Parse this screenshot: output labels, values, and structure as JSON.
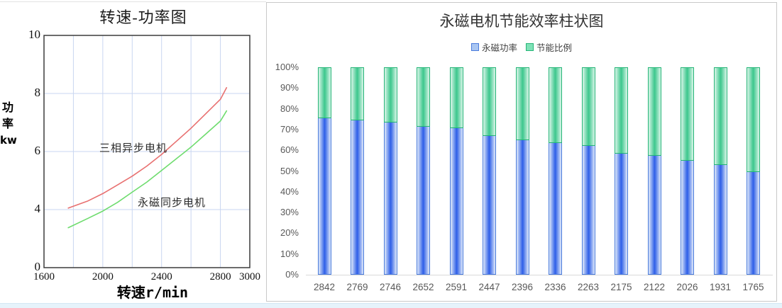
{
  "page": {
    "bottom_strip_color": "#e6f3fb",
    "card_border_color": "#c9c9c9"
  },
  "chart_data": [
    {
      "type": "line",
      "title": "转速-功率图",
      "xlabel": "转速r/min",
      "ylabel": "功率kw",
      "ylabel_lines": [
        "功",
        "率",
        "kw"
      ],
      "xlim": [
        1600,
        3000
      ],
      "xticks": [
        "1600",
        "2000",
        "2400",
        "2800",
        "3000"
      ],
      "xtick_values": [
        1600,
        2000,
        2400,
        2800,
        3000
      ],
      "yticks": [
        "0",
        "4",
        "6",
        "8",
        "10"
      ],
      "ytick_values": [
        0,
        4,
        6,
        8,
        10
      ],
      "axis_note": "y axis non-uniform: labeled ticks 0,4,6,8,10 are equally spaced",
      "grid": true,
      "gridline_color": "#c9d6f0",
      "grid_x_values": [
        1800,
        2000,
        2200,
        2400,
        2600,
        2800
      ],
      "grid_y_values": [
        4,
        6,
        8
      ],
      "legend_position": "inline-labels",
      "series": [
        {
          "name": "三相异步电机",
          "color": "#e87070",
          "x": [
            1765,
            1900,
            2000,
            2100,
            2200,
            2300,
            2400,
            2500,
            2600,
            2700,
            2800,
            2842
          ],
          "y": [
            4.05,
            4.3,
            4.55,
            4.85,
            5.15,
            5.5,
            5.9,
            6.35,
            6.8,
            7.3,
            7.8,
            8.2
          ]
        },
        {
          "name": "永磁同步电机",
          "color": "#6edc6e",
          "x": [
            1765,
            1900,
            2000,
            2100,
            2200,
            2300,
            2400,
            2500,
            2600,
            2700,
            2800,
            2842
          ],
          "y": [
            2.75,
            3.4,
            3.9,
            4.25,
            4.6,
            4.95,
            5.35,
            5.75,
            6.15,
            6.6,
            7.05,
            7.4
          ]
        }
      ]
    },
    {
      "type": "bar",
      "subtype": "stacked",
      "title": "永磁电机节能效率柱状图",
      "categories": [
        "2842",
        "2769",
        "2746",
        "2652",
        "2591",
        "2447",
        "2396",
        "2336",
        "2263",
        "2175",
        "2122",
        "2026",
        "1931",
        "1765"
      ],
      "series": [
        {
          "name": "永磁功率",
          "color": "#2d5ee8",
          "edge_color": "#e0eafa",
          "border_color": "#4a7bdc",
          "legend_fill": "#a9c6f2",
          "values": [
            75.5,
            74.5,
            73.5,
            71.5,
            70.5,
            67,
            65,
            63.5,
            62,
            58.5,
            57.5,
            55,
            53,
            49.5
          ]
        },
        {
          "name": "节能比例",
          "color": "#3bc78c",
          "edge_color": "#d9f5e8",
          "border_color": "#25b577",
          "legend_fill": "#7fe2b7",
          "values": [
            24.5,
            25.5,
            26.5,
            28.5,
            29.5,
            33,
            35,
            36.5,
            38,
            41.5,
            42.5,
            45,
            47,
            50.5
          ]
        }
      ],
      "ylim": [
        0,
        100
      ],
      "yticks": [
        "0%",
        "10%",
        "20%",
        "30%",
        "40%",
        "50%",
        "60%",
        "70%",
        "80%",
        "90%",
        "100%"
      ],
      "grid": false,
      "legend_position": "top"
    }
  ]
}
